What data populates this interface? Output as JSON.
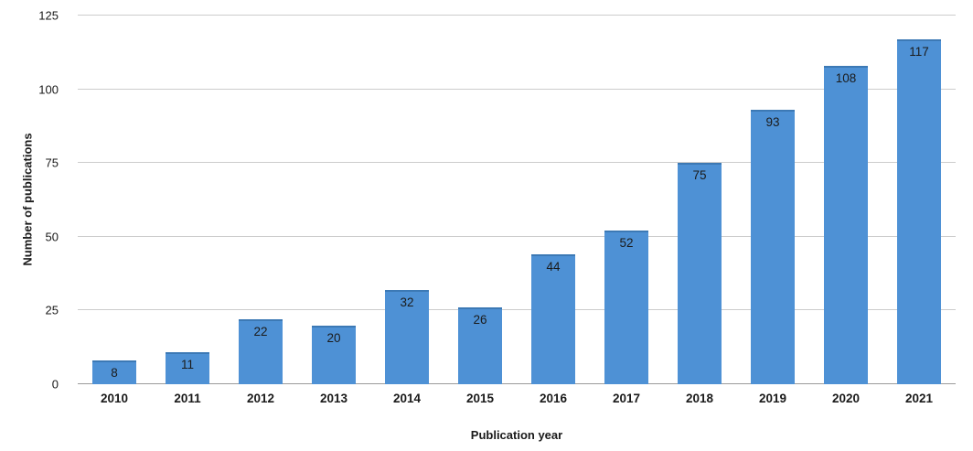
{
  "chart_data": {
    "type": "bar",
    "title": "",
    "xlabel": "Publication year",
    "ylabel": "Number of publications",
    "categories": [
      "2010",
      "2011",
      "2012",
      "2013",
      "2014",
      "2015",
      "2016",
      "2017",
      "2018",
      "2019",
      "2020",
      "2021"
    ],
    "values": [
      8,
      11,
      22,
      20,
      32,
      26,
      44,
      52,
      75,
      93,
      108,
      117
    ],
    "ylim": [
      0,
      125
    ],
    "yticks": [
      0,
      25,
      50,
      75,
      100,
      125
    ],
    "grid": true,
    "legend_position": "none",
    "bar_color": "#4e91d5",
    "bar_border_color": "#3c79b5",
    "gridline_color": "#cccccc",
    "baseline_color": "#9a9a9a",
    "label_color": "#1b1b1b"
  }
}
